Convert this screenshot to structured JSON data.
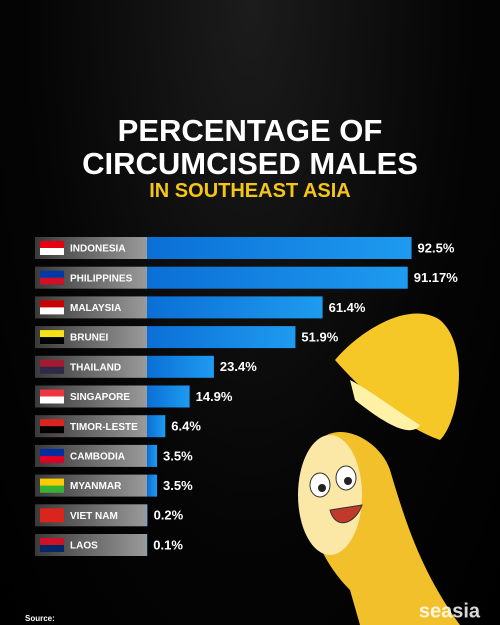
{
  "chart_data": {
    "type": "bar",
    "orientation": "horizontal",
    "title": "PERCENTAGE OF CIRCUMCISED MALES",
    "subtitle": "IN SOUTHEAST ASIA",
    "categories": [
      "INDONESIA",
      "PHILIPPINES",
      "MALAYSIA",
      "BRUNEI",
      "THAILAND",
      "SINGAPORE",
      "TIMOR-LESTE",
      "CAMBODIA",
      "MYANMAR",
      "VIET NAM",
      "LAOS"
    ],
    "values": [
      92.5,
      91.17,
      61.4,
      51.9,
      23.4,
      14.9,
      6.4,
      3.5,
      3.5,
      0.2,
      0.1
    ],
    "value_labels": [
      "92.5%",
      "91.17%",
      "61.4%",
      "51.9%",
      "23.4%",
      "14.9%",
      "6.4%",
      "3.5%",
      "3.5%",
      "0.2%",
      "0.1%"
    ],
    "color": "#1e9bf0",
    "xlim": [
      0,
      100
    ],
    "source": "Source:",
    "watermark": "seasia"
  }
}
